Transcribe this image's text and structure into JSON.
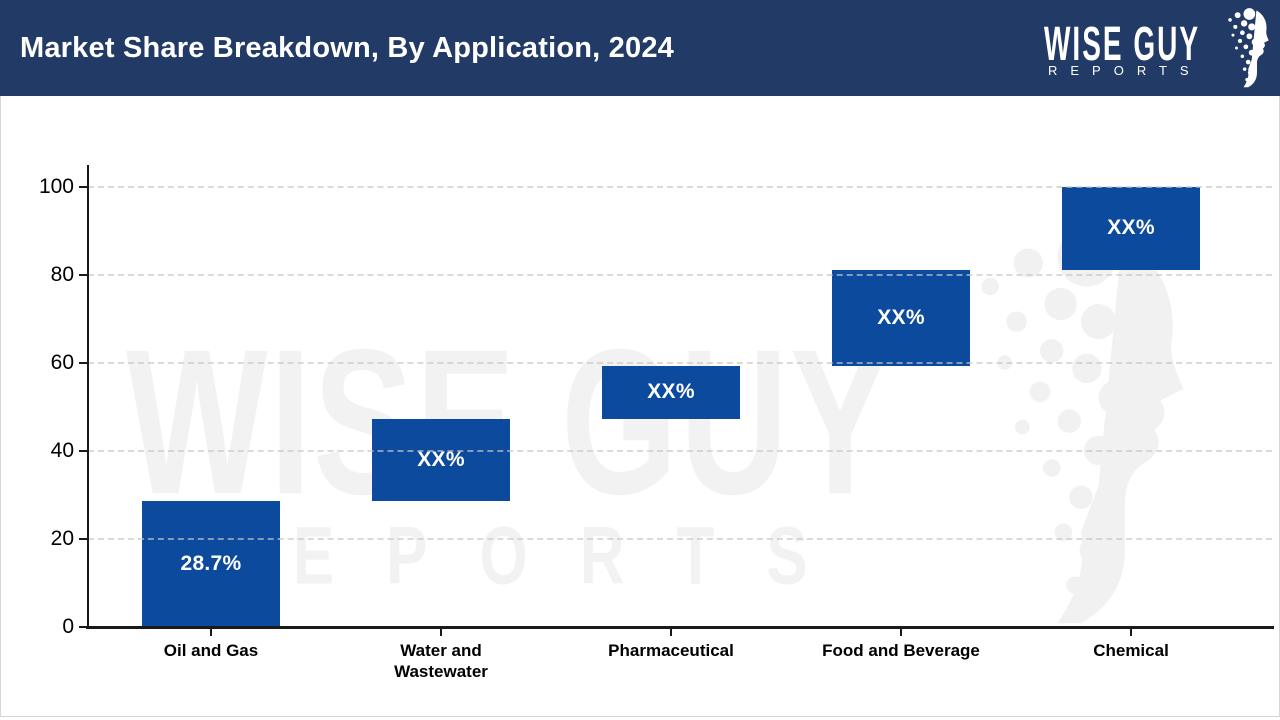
{
  "header": {
    "title": "Market Share Breakdown, By Application, 2024",
    "brand": {
      "name": "WISE GUY",
      "sub": "REPORTS"
    }
  },
  "colors": {
    "header_bg": "#223A66",
    "bar": "#0C4A9E",
    "axis": "#1a1a1a",
    "grid": "#dcdcdc",
    "watermark": "#f2f2f2"
  },
  "chart_data": {
    "type": "bar",
    "variant": "floating-waterfall",
    "title": "Market Share Breakdown, By Application, 2024",
    "categories": [
      "Oil and Gas",
      "Water and Wastewater",
      "Pharmaceutical",
      "Food and Beverage",
      "Chemical"
    ],
    "axis_labels": [
      [
        "Oil and Gas"
      ],
      [
        "Water and",
        "Wastewater"
      ],
      [
        "Pharmaceutical"
      ],
      [
        "Food and Beverage"
      ],
      [
        "Chemical"
      ]
    ],
    "segments": [
      {
        "category": "Oil and Gas",
        "start": 0,
        "end": 28.7,
        "label": "28.7%"
      },
      {
        "category": "Water and Wastewater",
        "start": 28.7,
        "end": 47.3,
        "label": "XX%"
      },
      {
        "category": "Pharmaceutical",
        "start": 47.3,
        "end": 59.4,
        "label": "XX%"
      },
      {
        "category": "Food and Beverage",
        "start": 59.4,
        "end": 81.2,
        "label": "XX%"
      },
      {
        "category": "Chemical",
        "start": 81.2,
        "end": 100,
        "label": "XX%"
      }
    ],
    "ylabel": "",
    "xlabel": "",
    "yticks": [
      0,
      20,
      40,
      60,
      80,
      100
    ],
    "ylim": [
      0,
      105
    ],
    "grid": "horizontal-dashed",
    "legend": "none",
    "bar_color": "#0C4A9E",
    "watermark": {
      "line1": "WISE GUY",
      "line2": "REPORTS"
    }
  }
}
